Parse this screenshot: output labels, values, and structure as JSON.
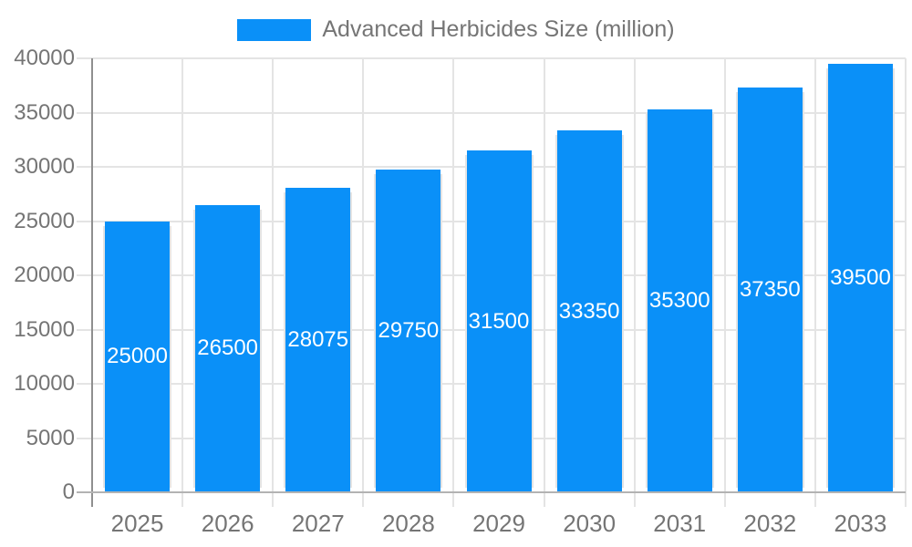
{
  "colors": {
    "bar": "#0a90f8",
    "grid": "#e4e4e4",
    "axis_line": "#8f8f8f",
    "baseline": "#b3b3b3",
    "text": "#757575",
    "bar_label": "#ffffff",
    "background": "#ffffff"
  },
  "legend": {
    "series_label": "Advanced Herbicides Size (million)"
  },
  "chart_data": {
    "type": "bar",
    "title": "",
    "series_name": "Advanced Herbicides Size (million)",
    "categories": [
      "2025",
      "2026",
      "2027",
      "2028",
      "2029",
      "2030",
      "2031",
      "2032",
      "2033"
    ],
    "values": [
      25000,
      26500,
      28075,
      29750,
      31500,
      33350,
      35300,
      37350,
      39500
    ],
    "bar_value_labels": [
      "25000",
      "26500",
      "28075",
      "29750",
      "31500",
      "33350",
      "35300",
      "37350",
      "39500"
    ],
    "ytick_labels": [
      "0",
      "5000",
      "10000",
      "15000",
      "20000",
      "25000",
      "30000",
      "35000",
      "40000"
    ],
    "ylim": [
      0,
      40000
    ],
    "ytick_step": 5000,
    "xlabel": "",
    "ylabel": "",
    "grid": true,
    "legend_position": "top",
    "value_label_position": "inside-center"
  }
}
